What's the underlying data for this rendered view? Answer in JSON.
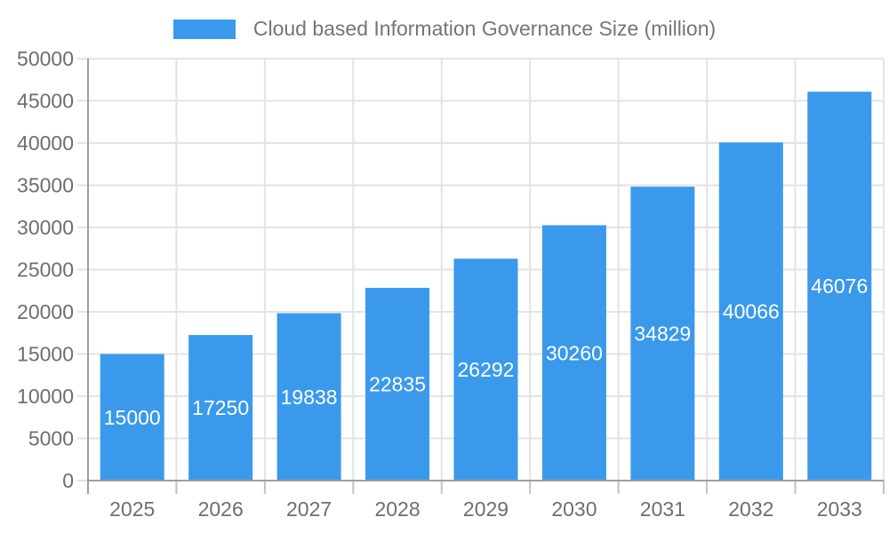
{
  "legend": {
    "label": "Cloud based Information Governance Size (million)"
  },
  "chart_data": {
    "type": "bar",
    "title": "Cloud based Information Governance Size (million)",
    "categories": [
      "2025",
      "2026",
      "2027",
      "2028",
      "2029",
      "2030",
      "2031",
      "2032",
      "2033"
    ],
    "series": [
      {
        "name": "Cloud based Information Governance Size (million)",
        "values": [
          15000,
          17250,
          19838,
          22835,
          26292,
          30260,
          34829,
          40066,
          46076
        ]
      }
    ],
    "xlabel": "",
    "ylabel": "",
    "ylim": [
      0,
      50000
    ],
    "y_ticks": [
      0,
      5000,
      10000,
      15000,
      20000,
      25000,
      30000,
      35000,
      40000,
      45000,
      50000
    ],
    "grid": true,
    "legend_position": "top",
    "value_labels": "inside-center"
  },
  "colors": {
    "bar": "#3b99ec",
    "grid": "#e3e3e3",
    "axis": "#9e9e9e",
    "tick": "#c2c2c2",
    "axis_text": "#6e6e6e",
    "title_text": "#757575",
    "value_text": "#ffffff",
    "background": "#ffffff"
  }
}
